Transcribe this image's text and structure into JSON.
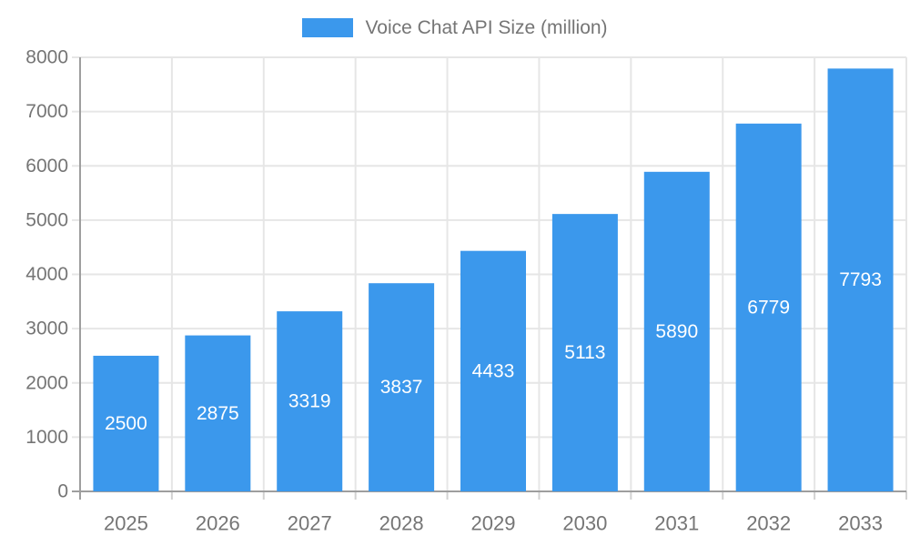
{
  "chart_data": {
    "type": "bar",
    "title": "Voice Chat API Size (million)",
    "categories": [
      "2025",
      "2026",
      "2027",
      "2028",
      "2029",
      "2030",
      "2031",
      "2032",
      "2033"
    ],
    "values": [
      2500,
      2875,
      3319,
      3837,
      4433,
      5113,
      5890,
      6779,
      7793
    ],
    "xlabel": "",
    "ylabel": "",
    "ylim": [
      0,
      8000
    ],
    "ytick_step": 1000,
    "grid": true,
    "legend_position": "top",
    "bar_color": "#3B98EC",
    "bar_label_color": "#ffffff",
    "axis_text_color": "#757575",
    "grid_color": "#e6e6e6",
    "minor_tick_color": "#d2d2d2",
    "axis_line_color": "#9e9e9e",
    "background_color": "#ffffff"
  }
}
